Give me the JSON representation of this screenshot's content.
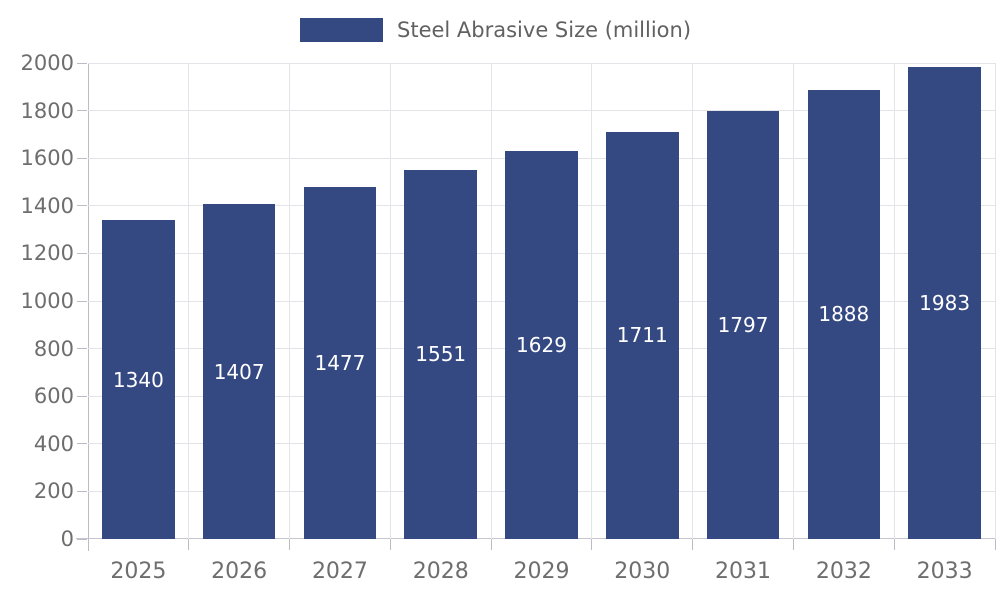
{
  "chart_data": {
    "type": "bar",
    "title": "",
    "legend": {
      "label": "Steel Abrasive Size (million)",
      "position": "top-center"
    },
    "categories": [
      "2025",
      "2026",
      "2027",
      "2028",
      "2029",
      "2030",
      "2031",
      "2032",
      "2033"
    ],
    "series": [
      {
        "name": "Steel Abrasive Size (million)",
        "values": [
          1340,
          1407,
          1477,
          1551,
          1629,
          1711,
          1797,
          1888,
          1983
        ]
      }
    ],
    "value_labels_shown": true,
    "xlabel": "",
    "ylabel": "",
    "ylim": [
      0,
      2000
    ],
    "yticks": [
      0,
      200,
      400,
      600,
      800,
      1000,
      1200,
      1400,
      1600,
      1800,
      2000
    ],
    "grid": true,
    "colors": {
      "bar": "#344882",
      "value_label": "#ffffff",
      "axis_label": "#6e6e6e",
      "legend_text": "#616161",
      "gridline": "#e3e3e8",
      "axis_line": "#bcbcc6",
      "background": "#ffffff"
    }
  }
}
